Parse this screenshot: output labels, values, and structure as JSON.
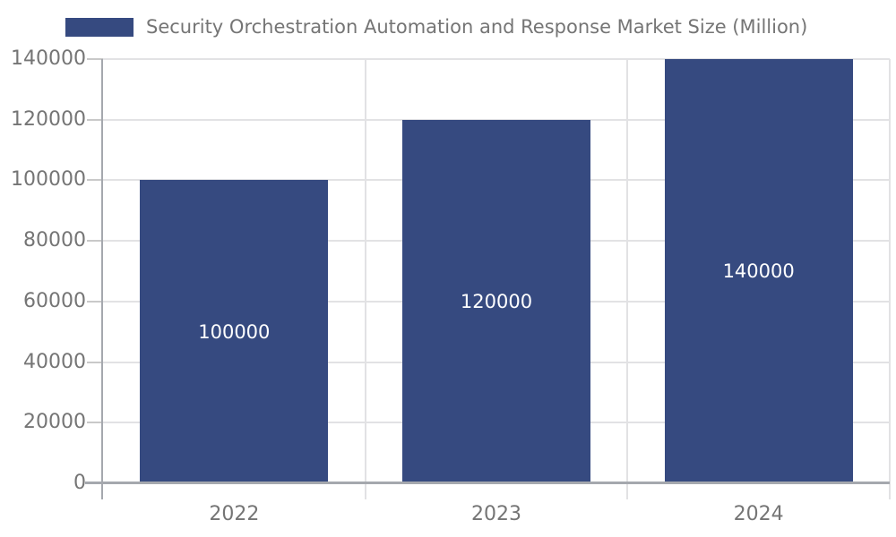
{
  "chart_data": {
    "type": "bar",
    "title": "Security Orchestration Automation and Response Market Size (Million)",
    "categories": [
      "2022",
      "2023",
      "2024"
    ],
    "values": [
      100000,
      120000,
      140000
    ],
    "data_labels": [
      "100000",
      "120000",
      "140000"
    ],
    "series": [
      {
        "name": "Security Orchestration Automation and Response Market Size (Million)",
        "values": [
          100000,
          120000,
          140000
        ]
      }
    ],
    "xlabel": "",
    "ylabel": "",
    "ylim": [
      0,
      140000
    ],
    "ytick_step": 20000,
    "yticks": [
      0,
      20000,
      40000,
      60000,
      80000,
      100000,
      120000,
      140000
    ],
    "grid": true,
    "legend_position": "top-left",
    "colors": {
      "bar": "#364a80",
      "data_label": "#ffffff",
      "grid_line": "#e2e2e4",
      "axis_line": "#a5a8ae",
      "tick_line": "#c9c9c9",
      "text": "#757575",
      "background": "#ffffff"
    }
  }
}
